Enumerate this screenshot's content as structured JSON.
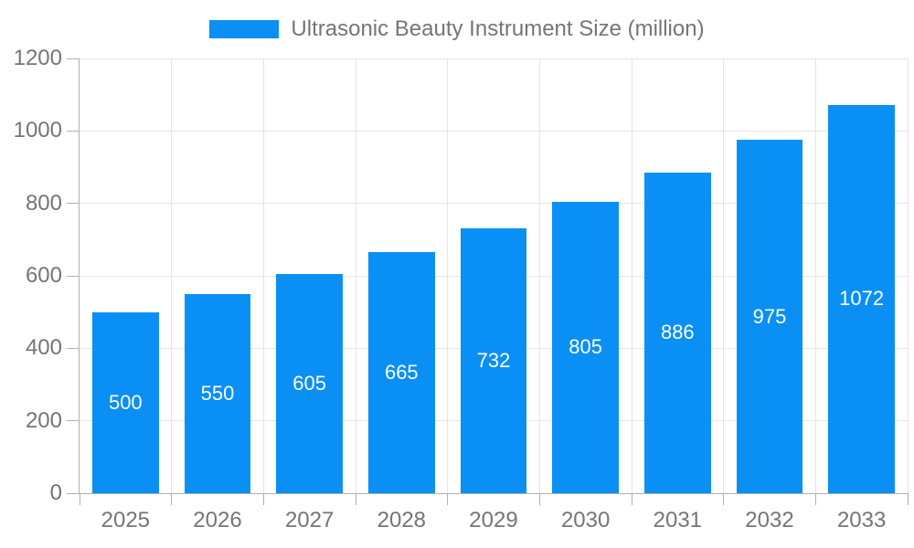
{
  "chart_data": {
    "type": "bar",
    "title": "Ultrasonic Beauty Instrument Size (million)",
    "categories": [
      "2025",
      "2026",
      "2027",
      "2028",
      "2029",
      "2030",
      "2031",
      "2032",
      "2033"
    ],
    "values": [
      500,
      550,
      605,
      665,
      732,
      805,
      886,
      975,
      1072
    ],
    "xlabel": "",
    "ylabel": "",
    "ylim": [
      0,
      1200
    ],
    "yticks": [
      0,
      200,
      400,
      600,
      800,
      1000,
      1200
    ],
    "grid": true,
    "legend_position": "top-center",
    "value_labels": "inside-center",
    "colors": {
      "bar": "#0a8ff5",
      "value_label": "#ffffff",
      "axis_label": "#757575",
      "gridline": "#e5e5e5",
      "axis_line": "#b0b0b0"
    }
  },
  "legend": {
    "label": "Ultrasonic Beauty Instrument Size (million)"
  }
}
